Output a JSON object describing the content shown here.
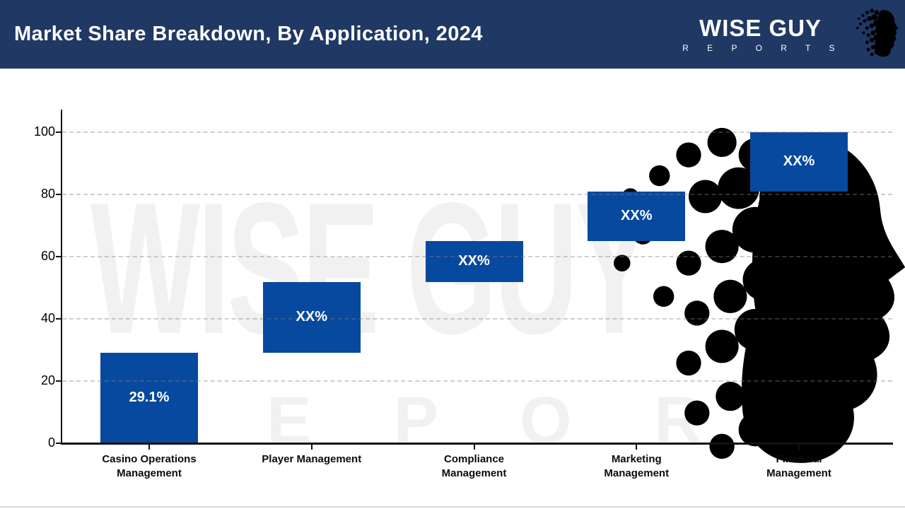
{
  "header": {
    "title": "Market Share Breakdown, By Application, 2024",
    "logo": {
      "line1": "WISE GUY",
      "line2": "R E P O R T S"
    }
  },
  "watermark": {
    "line1": "WISE GUY",
    "line2": "R E P O R T S"
  },
  "colors": {
    "header_bg": "#1f3864",
    "bar": "#07499e",
    "bar_label": "#ffffff",
    "axis": "#111111",
    "gridline": "#dcdcdc",
    "watermark": "#f1f1f1"
  },
  "chart_data": {
    "type": "bar",
    "subtype": "waterfall",
    "title": "Market Share Breakdown, By Application, 2024",
    "categories": [
      "Casino Operations Management",
      "Player Management",
      "Compliance Management",
      "Marketing Management",
      "Financial Management"
    ],
    "category_lines": [
      [
        "Casino Operations",
        "Management"
      ],
      [
        "Player Management"
      ],
      [
        "Compliance",
        "Management"
      ],
      [
        "Marketing",
        "Management"
      ],
      [
        "Financial",
        "Management"
      ]
    ],
    "segments": [
      {
        "category": "Casino Operations Management",
        "start": 0,
        "end": 29.1,
        "label": "29.1%"
      },
      {
        "category": "Player Management",
        "start": 29.1,
        "end": 51.8,
        "label": "XX%"
      },
      {
        "category": "Compliance Management",
        "start": 51.8,
        "end": 65,
        "label": "XX%"
      },
      {
        "category": "Marketing Management",
        "start": 65,
        "end": 81,
        "label": "XX%"
      },
      {
        "category": "Financial Management",
        "start": 81,
        "end": 100,
        "label": "XX%"
      }
    ],
    "xlabel": "",
    "ylabel": "",
    "ylim": [
      0,
      100
    ],
    "yticks": [
      0,
      20,
      40,
      60,
      80,
      100
    ],
    "grid": "horizontal-dashed",
    "legend": "none",
    "bar_value_labels_inside": true
  }
}
